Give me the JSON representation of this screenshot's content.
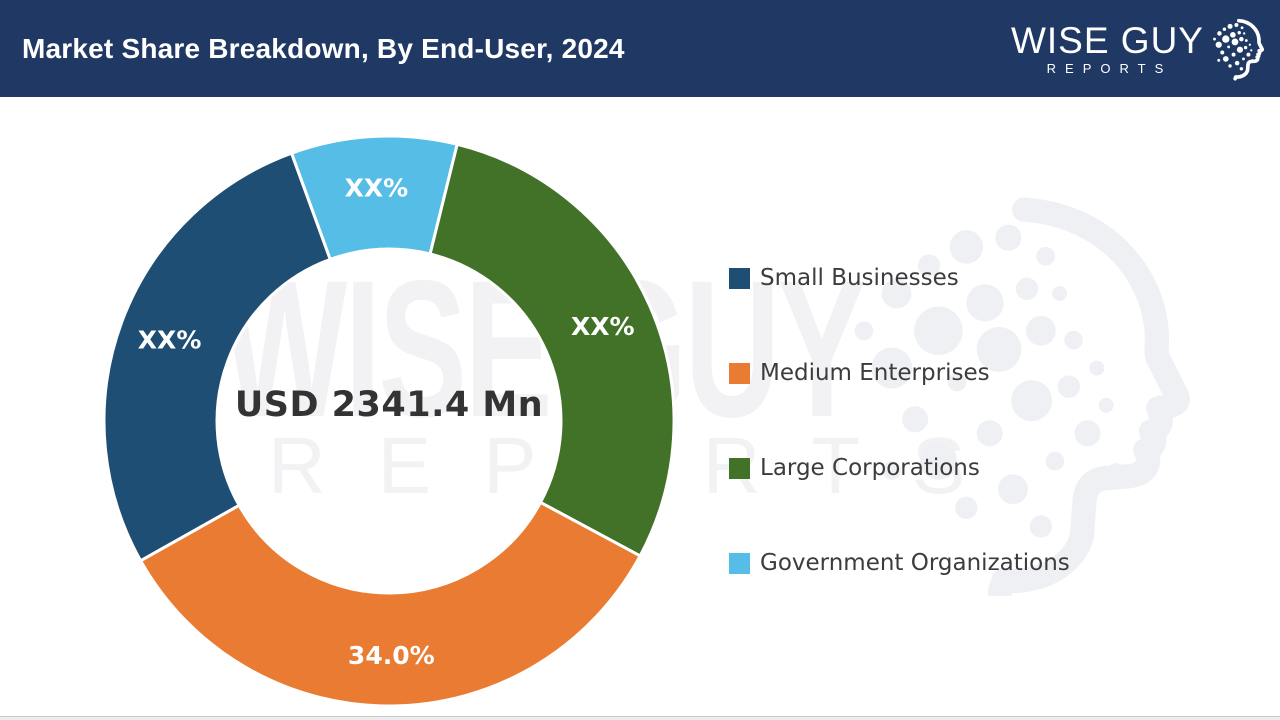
{
  "header": {
    "title": "Market Share Breakdown, By End-User, 2024",
    "bg_color": "#1F3864",
    "logo": {
      "wordmark": "WISE GUY",
      "sub": "REPORTS"
    }
  },
  "watermark": {
    "line1": "WISE GUY",
    "line2": "REPORTS"
  },
  "chart_data": {
    "type": "pie",
    "variant": "donut",
    "title": "Market Share Breakdown, By End-User, 2024",
    "center_text": "USD 2341.4 Mn",
    "start_angle_deg": -20,
    "direction": "clockwise",
    "inner_radius_ratio": 0.6,
    "grid": false,
    "slices": [
      {
        "label": "Government Organizations",
        "display_label": "XX%",
        "value_pct_est": 9.4,
        "color": "#56BEE6"
      },
      {
        "label": "Large Corporations",
        "display_label": "XX%",
        "value_pct_est": 29.0,
        "color": "#427227"
      },
      {
        "label": "Medium Enterprises",
        "display_label": "34.0%",
        "value_pct_est": 34.0,
        "color": "#EA7B33"
      },
      {
        "label": "Small Businesses",
        "display_label": "XX%",
        "value_pct_est": 27.6,
        "color": "#1F4E74"
      }
    ],
    "legend": {
      "position": "right",
      "items": [
        {
          "label": "Small Businesses",
          "color": "#1F4E74"
        },
        {
          "label": "Medium Enterprises",
          "color": "#EA7B33"
        },
        {
          "label": "Large Corporations",
          "color": "#427227"
        },
        {
          "label": "Government Organizations",
          "color": "#56BEE6"
        }
      ]
    }
  }
}
